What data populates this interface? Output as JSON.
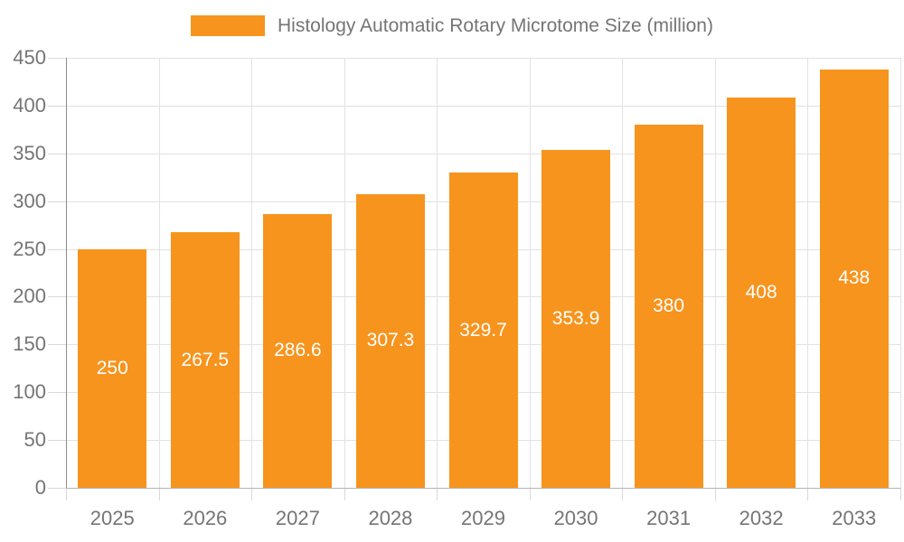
{
  "legend": {
    "label": "Histology Automatic Rotary Microtome Size (million)"
  },
  "colors": {
    "bar": "#f7941e",
    "bar_label_text": "#ffffff",
    "grid": "#e2e2e2",
    "tick": "#d9d9d9",
    "axis_y": "#8c8c8c",
    "axis_x": "#b4b4b4",
    "text": "#757575",
    "background": "#ffffff"
  },
  "chart_data": {
    "type": "bar",
    "title": "Histology Automatic Rotary Microtome Size (million)",
    "categories": [
      "2025",
      "2026",
      "2027",
      "2028",
      "2029",
      "2030",
      "2031",
      "2032",
      "2033"
    ],
    "values": [
      250,
      267.5,
      286.6,
      307.3,
      329.7,
      353.9,
      380,
      408,
      438
    ],
    "bar_labels": [
      "250",
      "267.5",
      "286.6",
      "307.3",
      "329.7",
      "353.9",
      "380",
      "408",
      "438"
    ],
    "xlabel": "",
    "ylabel": "",
    "ylim": [
      0,
      450
    ],
    "ytick_step": 50,
    "ytick_labels": [
      "0",
      "50",
      "100",
      "150",
      "200",
      "250",
      "300",
      "350",
      "400",
      "450"
    ],
    "grid": true,
    "legend_position": "top",
    "bar_label_position": "center"
  }
}
